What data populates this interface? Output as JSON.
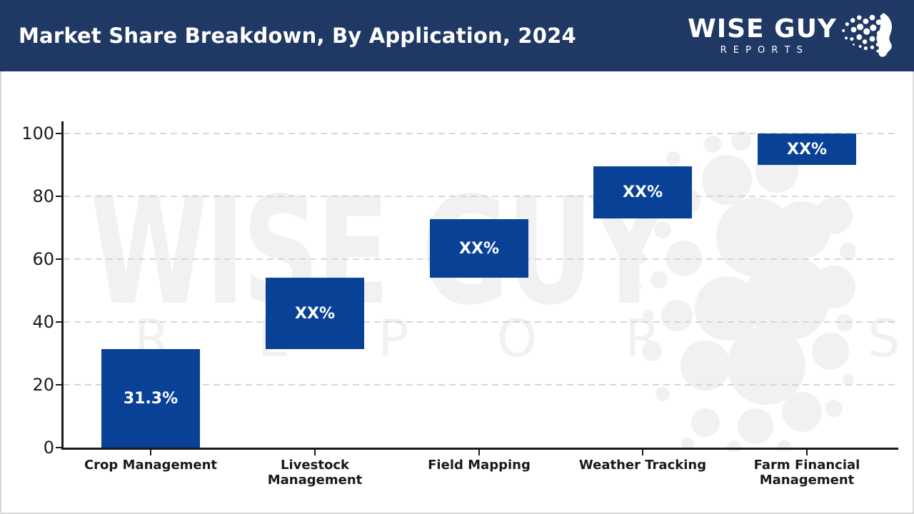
{
  "header": {
    "title": "Market Share Breakdown, By Application, 2024",
    "logo": {
      "line1": "WISE GUY",
      "line2": "R E P O R T S"
    }
  },
  "watermark": {
    "line1": "WISE GUY",
    "line2": "R E P O R T S"
  },
  "chart_data": {
    "type": "bar",
    "subtype": "waterfall",
    "title": "Market Share Breakdown, By Application, 2024",
    "categories": [
      "Crop Management",
      "Livestock\nManagement",
      "Field Mapping",
      "Weather Tracking",
      "Farm Financial\nManagement"
    ],
    "segments": [
      {
        "category": "Crop Management",
        "start": 0,
        "end": 31.3,
        "value": 31.3,
        "label": "31.3%"
      },
      {
        "category": "Livestock Management",
        "start": 31.3,
        "end": 54.0,
        "value": 22.7,
        "label": "XX%"
      },
      {
        "category": "Field Mapping",
        "start": 54.0,
        "end": 72.7,
        "value": 18.7,
        "label": "XX%"
      },
      {
        "category": "Weather Tracking",
        "start": 72.9,
        "end": 89.6,
        "value": 16.7,
        "label": "XX%"
      },
      {
        "category": "Farm Financial Management",
        "start": 90.0,
        "end": 100.0,
        "value": 10.0,
        "label": "XX%"
      }
    ],
    "yticks": [
      0,
      20,
      40,
      60,
      80,
      100
    ],
    "ylim": [
      0,
      104
    ],
    "xlabel": "",
    "ylabel": "",
    "grid": "dashed-horizontal",
    "legend": "none",
    "bar_color": "#084196",
    "bar_label_color": "#ffffff",
    "header_color": "#1f3864",
    "axis_color": "#1a1a1a",
    "grid_color": "#d7d7d7",
    "watermark_color": "#f1f1f1"
  }
}
